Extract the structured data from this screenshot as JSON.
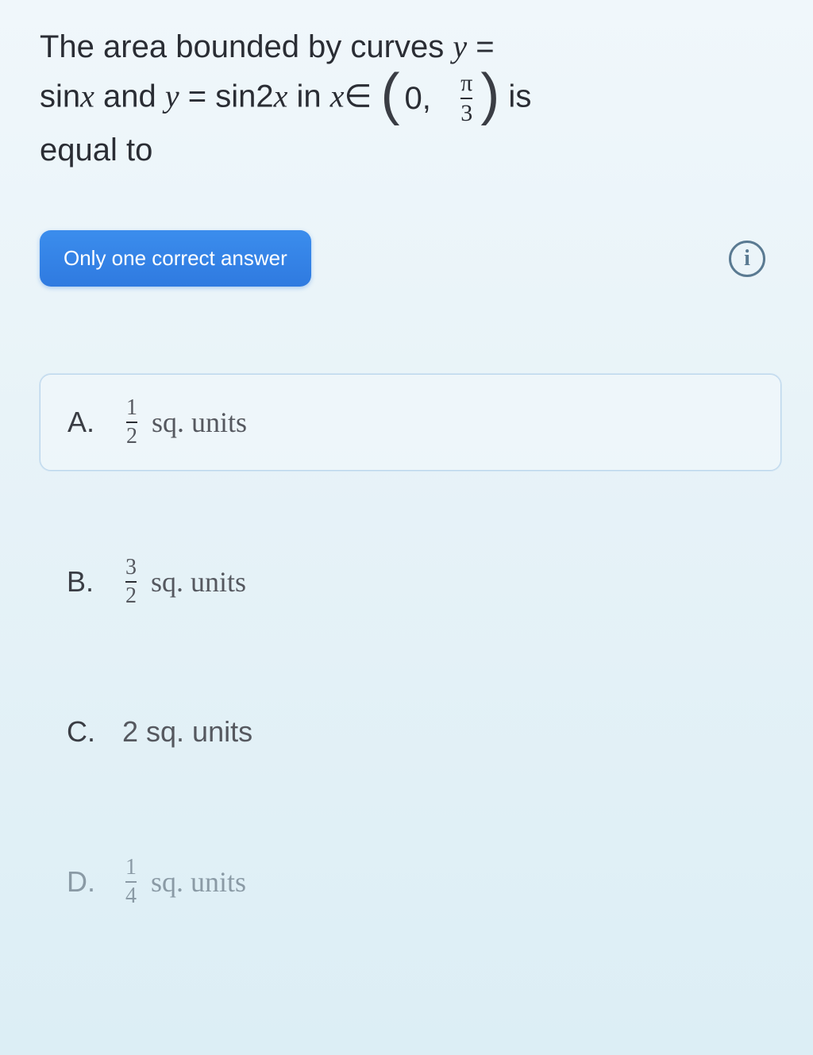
{
  "question": {
    "line1_prefix": "The area bounded by curves ",
    "line1_eq_lhs": "y",
    "line1_eq_eqsign": " = ",
    "line2_prefix": "sin",
    "line2_var1": "x",
    "line2_and": " and ",
    "line2_eq2_lhs": "y",
    "line2_eq2_eqsign": " = ",
    "line2_eq2_rhs_prefix": "sin2",
    "line2_eq2_rhs_var": "x",
    "line2_in": " in ",
    "line2_set_var": "x",
    "line2_member": "∈ ",
    "interval_left": "0,",
    "interval_frac_num": "π",
    "interval_frac_den": "3",
    "line2_is": " is",
    "line3": "equal to"
  },
  "badge": {
    "label": "Only one correct answer"
  },
  "info_icon": {
    "glyph": "i"
  },
  "options": {
    "A": {
      "letter": "A.",
      "frac_num": "1",
      "frac_den": "2",
      "units": "sq. units",
      "selected": true
    },
    "B": {
      "letter": "B.",
      "frac_num": "3",
      "frac_den": "2",
      "units": "sq. units",
      "selected": false
    },
    "C": {
      "letter": "C.",
      "text": "2 sq. units",
      "selected": false
    },
    "D": {
      "letter": "D.",
      "frac_num": "1",
      "frac_den": "4",
      "units": "sq. units",
      "selected": false,
      "faded": true
    }
  },
  "colors": {
    "background_top": "#f0f7fb",
    "background_bottom": "#dceef5",
    "text": "#2a2d34",
    "badge_bg": "#2f7ae0",
    "badge_text": "#ffffff",
    "option_border": "#bcd6ec",
    "info_border": "#5a7a92"
  }
}
